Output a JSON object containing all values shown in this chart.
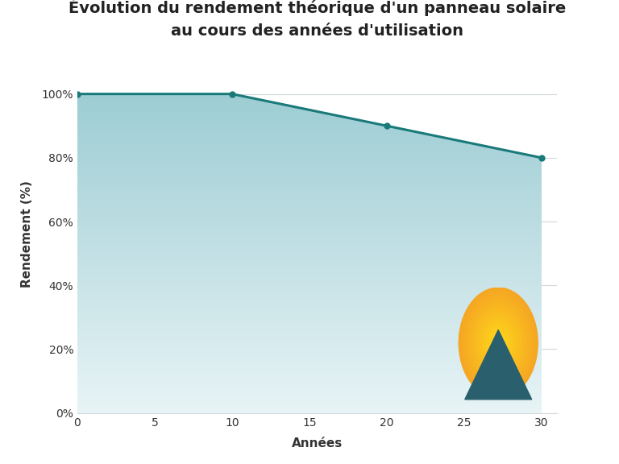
{
  "title_line1": "Évolution du rendement théorique d'un panneau solaire",
  "title_line2": "au cours des années d'utilisation",
  "xlabel": "Années",
  "ylabel": "Rendement (%)",
  "x": [
    0,
    10,
    20,
    30
  ],
  "y": [
    100,
    100,
    90,
    80
  ],
  "line_color": "#1a7a7a",
  "fill_top_color": "#9dcdd4",
  "fill_bottom_color": "#e8f4f6",
  "marker_color": "#1a7a7a",
  "marker_size": 6,
  "xlim": [
    0,
    31
  ],
  "ylim": [
    0,
    112
  ],
  "xticks": [
    0,
    5,
    10,
    15,
    20,
    25,
    30
  ],
  "yticks": [
    0,
    20,
    40,
    60,
    80,
    100
  ],
  "ytick_labels": [
    "0%",
    "20%",
    "40%",
    "60%",
    "80%",
    "100%"
  ],
  "grid_color": "#d0d8dd",
  "bg_color": "#ffffff",
  "title_fontsize": 14,
  "axis_label_fontsize": 11,
  "tick_fontsize": 10,
  "sun_color_inner": "#f5a623",
  "sun_color_outer": "#e8901a",
  "mountain_color": "#2a5f6e"
}
